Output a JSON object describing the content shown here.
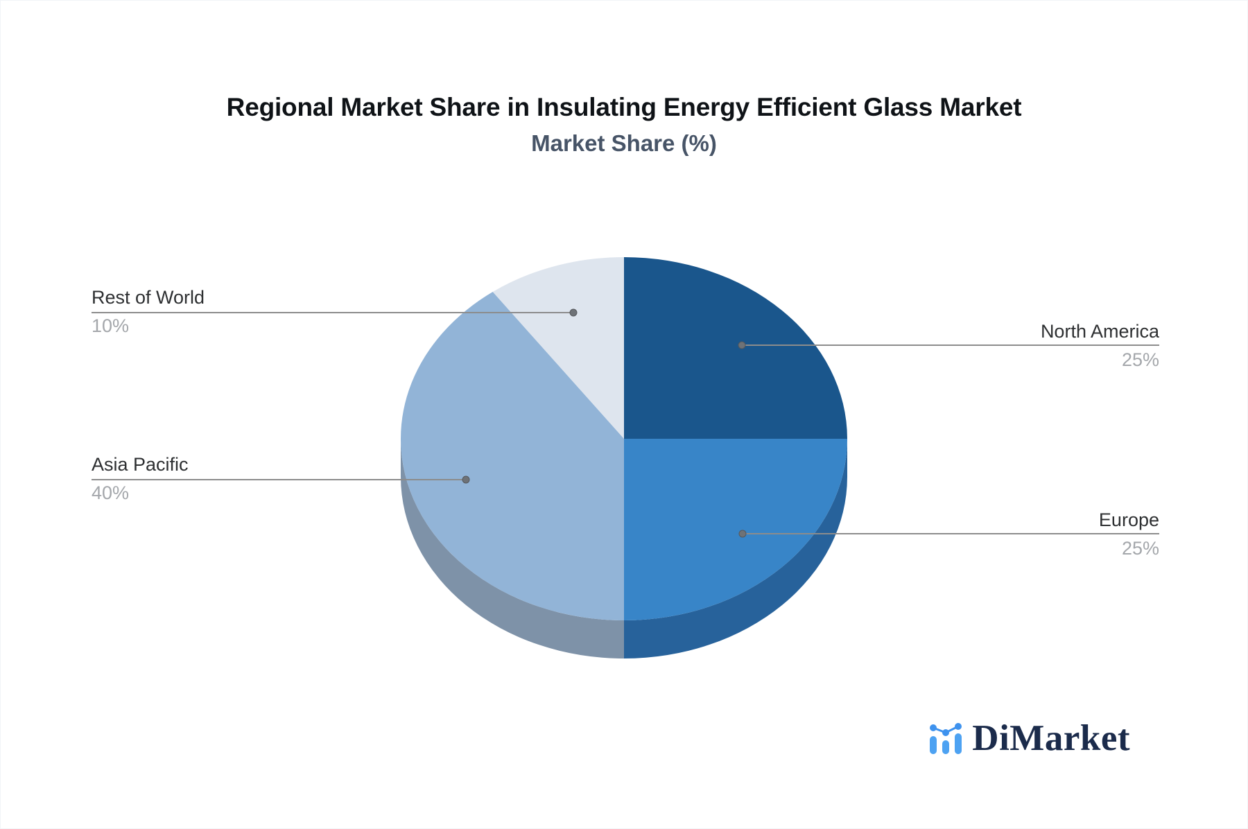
{
  "page": {
    "title": "Regional Market Share in Insulating Energy Efficient Glass Market",
    "subtitle": "Market Share (%)"
  },
  "chart_data": {
    "type": "pie",
    "style": "3d",
    "title": "Regional Market Share in Insulating Energy Efficient Glass Market",
    "subtitle": "Market Share (%)",
    "unit": "%",
    "rotation": "clockwise-from-12-oclock",
    "slices": [
      {
        "label": "North America",
        "value": 25,
        "display": "25%",
        "color": "#1A568C",
        "label_side": "right"
      },
      {
        "label": "Europe",
        "value": 25,
        "display": "25%",
        "color": "#3885C8",
        "side_color": "#27629B",
        "label_side": "right"
      },
      {
        "label": "Asia Pacific",
        "value": 40,
        "display": "40%",
        "color": "#92B4D7",
        "side_color": "#7E92A8",
        "label_side": "left"
      },
      {
        "label": "Rest of World",
        "value": 10,
        "display": "10%",
        "color": "#DEE5EE",
        "label_side": "left"
      }
    ],
    "legend": "none",
    "leader_line_color": "#8C8C8C",
    "leader_dot_color": "#6E7277",
    "label_text_color": "#2D2F31",
    "value_text_color": "#A4A7AB"
  },
  "brand": {
    "name": "DiMarket",
    "icon": "bar-line-chart-logo",
    "text_color": "#1B2B4B",
    "icon_bar_color": "#4DA2F2",
    "icon_dot_color": "#3E92EE"
  }
}
